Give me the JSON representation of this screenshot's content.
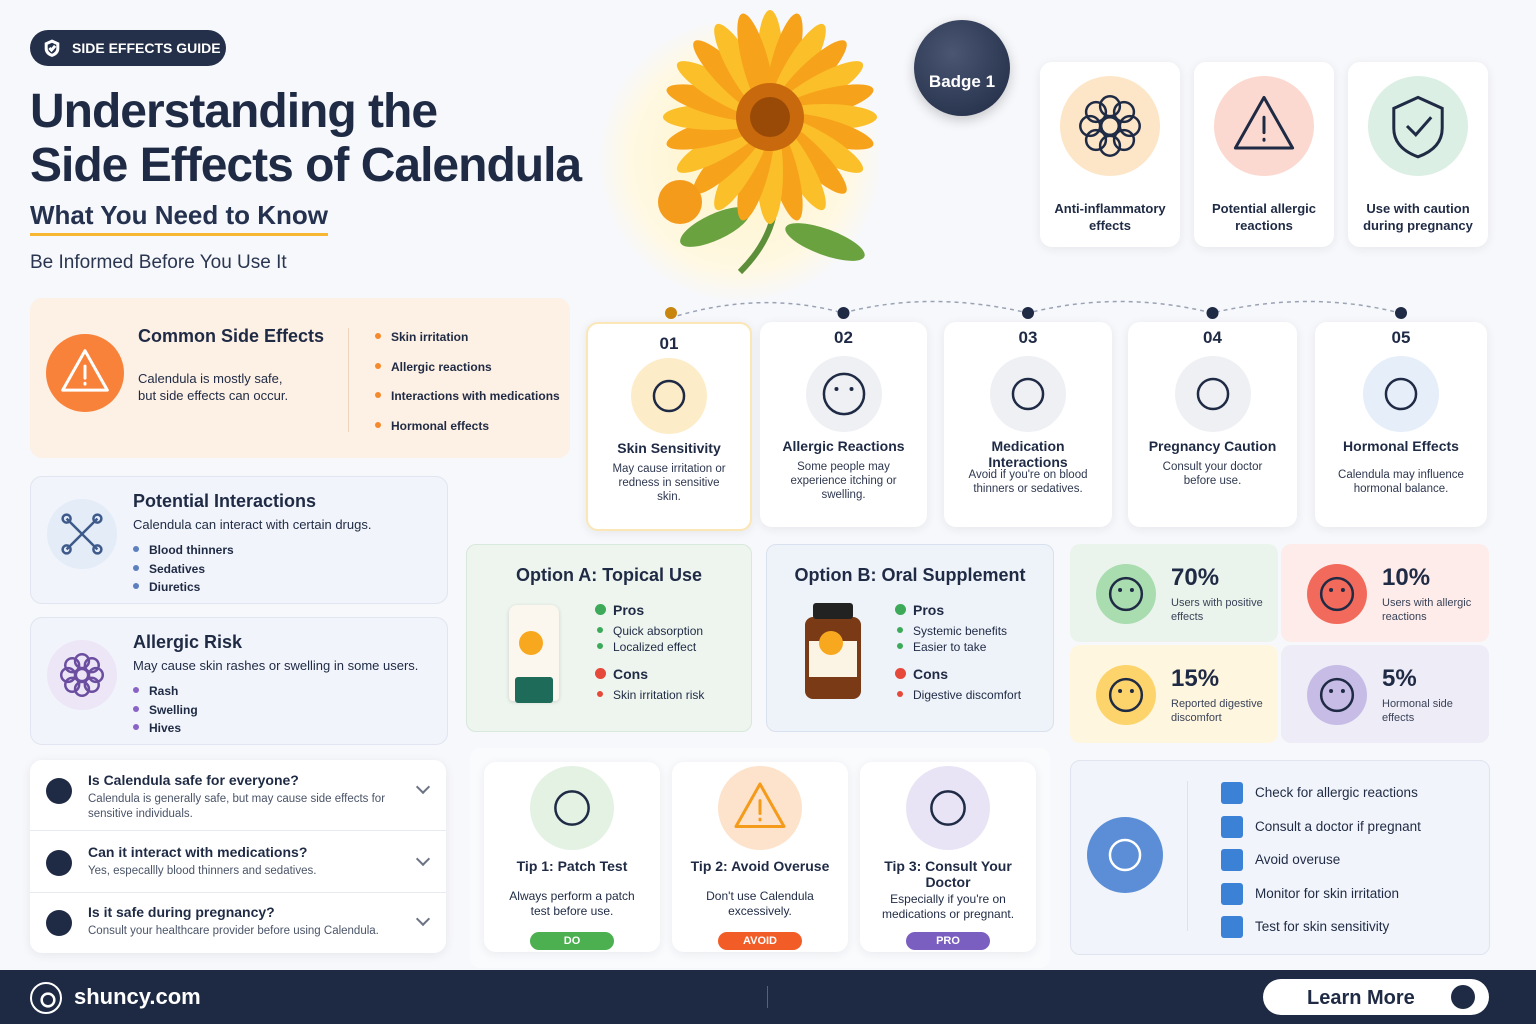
{
  "header": {
    "badge": "SIDE EFFECTS GUIDE",
    "title_line1": "Understanding the",
    "title_line2": "Side Effects of Calendula",
    "subtitle": "What You Need to Know",
    "tagline": "Be Informed Before You Use It",
    "flower_badge": "Badge 1"
  },
  "highlights": [
    {
      "label": "Anti-inflammatory effects"
    },
    {
      "label": "Potential allergic reactions"
    },
    {
      "label": "Use with caution during pregnancy"
    }
  ],
  "common": {
    "title": "Common Side Effects",
    "text": "Calendula is mostly safe, but side effects can occur.",
    "items": [
      "Skin irritation",
      "Allergic reactions",
      "Interactions with medications",
      "Hormonal effects"
    ]
  },
  "interactions": {
    "title": "Potential Interactions",
    "text": "Calendula can interact with certain drugs.",
    "items": [
      "Blood thinners",
      "Sedatives",
      "Diuretics"
    ]
  },
  "allergic": {
    "title": "Allergic Risk",
    "text": "May cause skin rashes or swelling in some users.",
    "items": [
      "Rash",
      "Swelling",
      "Hives"
    ]
  },
  "faq": [
    {
      "q": "Is Calendula safe for everyone?",
      "a": "Calendula is generally safe, but may cause side effects for sensitive individuals."
    },
    {
      "q": "Can it interact with medications?",
      "a": "Yes, especallly blood thinners and sedatives."
    },
    {
      "q": "Is it safe during pregnancy?",
      "a": "Consult your healthcare provider before using Calendula."
    }
  ],
  "steps": [
    {
      "number": "01",
      "title": "Skin Sensitivity",
      "text": "May cause irritation or redness in sensitive skin."
    },
    {
      "number": "02",
      "title": "Allergic Reactions",
      "text": "Some people may experience itching or swelling."
    },
    {
      "number": "03",
      "title": "Medication Interactions",
      "text": "Avoid if you're on blood thinners or sedatives."
    },
    {
      "number": "04",
      "title": "Pregnancy Caution",
      "text": "Consult your doctor before use."
    },
    {
      "number": "05",
      "title": "Hormonal Effects",
      "text": "Calendula may influence hormonal balance."
    }
  ],
  "options": [
    {
      "title": "Option A: Topical Use",
      "pros_label": "Pros",
      "pros": [
        "Quick absorption",
        "Localized effect"
      ],
      "cons_label": "Cons",
      "cons": [
        "Skin irritation risk"
      ]
    },
    {
      "title": "Option B: Oral Supplement",
      "pros_label": "Pros",
      "pros": [
        "Systemic benefits",
        "Easier to take"
      ],
      "cons_label": "Cons",
      "cons": [
        "Digestive discomfort"
      ]
    }
  ],
  "stats": [
    {
      "value": "70%",
      "label": "Users with positive effects"
    },
    {
      "value": "10%",
      "label": "Users with allergic reactions"
    },
    {
      "value": "15%",
      "label": "Reported digestive discomfort"
    },
    {
      "value": "5%",
      "label": "Hormonal side effects"
    }
  ],
  "tips": [
    {
      "title": "Tip 1: Patch Test",
      "text": "Always perform a patch test before use.",
      "tag": "DO"
    },
    {
      "title": "Tip 2: Avoid Overuse",
      "text": "Don't use Calendula excessively.",
      "tag": "AVOID"
    },
    {
      "title": "Tip 3: Consult Your Doctor",
      "text": "Especially if you're on medications or pregnant.",
      "tag": "PRO"
    }
  ],
  "checklist": [
    "Check for allergic reactions",
    "Consult a doctor if pregnant",
    "Avoid overuse",
    "Monitor for skin irritation",
    "Test for skin sensitivity"
  ],
  "footer": {
    "site": "shuncy.com",
    "cta": "Learn More"
  }
}
